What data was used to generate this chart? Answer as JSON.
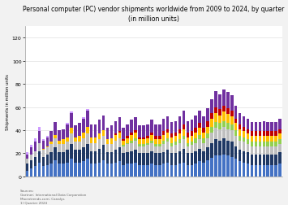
{
  "title": "Personal computer (PC) vendor shipments worldwide from 2009 to 2024, by quarter",
  "subtitle": "(in million units)",
  "ylabel": "Shipments in million units",
  "source_text": "Sources:\nGartner; International Data Corporation\nMacrotrends.com; Canalys\n1) Quarter 2024",
  "ylim": [
    0,
    130
  ],
  "yticks": [
    0,
    20,
    40,
    60,
    80,
    100,
    120
  ],
  "ytick_labels": [
    "0",
    "20",
    "40",
    "60",
    "80",
    "100",
    "120"
  ],
  "bg_color": "#f2f2f2",
  "plot_bg": "#ffffff",
  "colors": {
    "blue": "#4472c4",
    "navy": "#1f3864",
    "gray": "#bfbfbf",
    "green": "#92d050",
    "yellow": "#ffc000",
    "red": "#c00000",
    "purple": "#7030a0",
    "pink": "#cc99ff"
  },
  "series_order": [
    "blue",
    "navy",
    "gray",
    "green",
    "yellow",
    "red",
    "purple",
    "pink"
  ],
  "series": {
    "blue": [
      5,
      7,
      9,
      12,
      9,
      10,
      11,
      14,
      11,
      11,
      12,
      15,
      12,
      12,
      13,
      15,
      11,
      11,
      12,
      14,
      11,
      11,
      12,
      13,
      10,
      11,
      11,
      12,
      10,
      10,
      10,
      11,
      10,
      10,
      11,
      12,
      10,
      10,
      11,
      12,
      10,
      10,
      11,
      13,
      12,
      14,
      16,
      18,
      18,
      19,
      18,
      17,
      15,
      13,
      12,
      11,
      10,
      10,
      10,
      10,
      10,
      10,
      10,
      11
    ],
    "navy": [
      6,
      7,
      8,
      10,
      8,
      9,
      10,
      11,
      10,
      10,
      11,
      13,
      11,
      11,
      12,
      13,
      11,
      11,
      12,
      13,
      10,
      10,
      11,
      12,
      10,
      10,
      11,
      11,
      10,
      10,
      10,
      11,
      10,
      10,
      10,
      11,
      10,
      10,
      11,
      12,
      10,
      10,
      11,
      11,
      10,
      11,
      13,
      14,
      13,
      14,
      13,
      13,
      11,
      10,
      10,
      10,
      9,
      9,
      9,
      9,
      9,
      9,
      9,
      10
    ],
    "gray": [
      4,
      5,
      5,
      7,
      6,
      6,
      7,
      8,
      7,
      7,
      7,
      9,
      7,
      7,
      8,
      9,
      7,
      7,
      8,
      8,
      7,
      7,
      8,
      8,
      6,
      7,
      7,
      8,
      6,
      6,
      7,
      7,
      6,
      6,
      7,
      7,
      6,
      7,
      7,
      8,
      6,
      7,
      7,
      8,
      7,
      8,
      9,
      10,
      10,
      10,
      10,
      10,
      9,
      8,
      8,
      7,
      7,
      7,
      7,
      7,
      7,
      7,
      7,
      7
    ],
    "green": [
      0,
      0,
      0,
      0,
      0,
      0,
      0,
      0,
      0,
      0,
      0,
      0,
      0,
      0,
      0,
      0,
      0,
      0,
      0,
      0,
      0,
      0,
      0,
      0,
      1,
      1,
      2,
      2,
      2,
      2,
      2,
      2,
      2,
      2,
      3,
      3,
      3,
      3,
      3,
      3,
      3,
      3,
      4,
      4,
      4,
      4,
      5,
      5,
      5,
      5,
      5,
      5,
      5,
      4,
      4,
      4,
      4,
      4,
      4,
      4,
      4,
      4,
      4,
      4
    ],
    "yellow": [
      0,
      0,
      0,
      0,
      1,
      1,
      2,
      3,
      3,
      4,
      4,
      5,
      4,
      5,
      5,
      6,
      5,
      5,
      5,
      5,
      4,
      5,
      5,
      5,
      4,
      4,
      5,
      5,
      4,
      4,
      4,
      5,
      4,
      4,
      5,
      5,
      5,
      5,
      5,
      6,
      5,
      5,
      5,
      6,
      5,
      6,
      7,
      8,
      7,
      8,
      8,
      7,
      6,
      6,
      5,
      5,
      5,
      5,
      5,
      5,
      5,
      5,
      5,
      5
    ],
    "red": [
      0,
      0,
      0,
      0,
      0,
      0,
      0,
      0,
      0,
      0,
      0,
      0,
      0,
      0,
      0,
      0,
      0,
      0,
      0,
      0,
      0,
      0,
      1,
      1,
      1,
      2,
      2,
      2,
      2,
      2,
      2,
      2,
      3,
      3,
      3,
      3,
      3,
      3,
      4,
      4,
      4,
      4,
      4,
      4,
      4,
      5,
      5,
      5,
      5,
      5,
      5,
      5,
      4,
      4,
      4,
      4,
      4,
      4,
      4,
      4,
      4,
      4,
      4,
      4
    ],
    "purple": [
      4,
      6,
      8,
      10,
      7,
      8,
      9,
      11,
      9,
      9,
      11,
      13,
      10,
      11,
      12,
      14,
      11,
      11,
      12,
      13,
      10,
      11,
      11,
      12,
      10,
      10,
      11,
      11,
      10,
      10,
      10,
      11,
      10,
      10,
      11,
      11,
      10,
      10,
      11,
      12,
      10,
      10,
      11,
      11,
      10,
      11,
      12,
      14,
      13,
      14,
      14,
      13,
      11,
      10,
      9,
      9,
      8,
      8,
      8,
      9,
      8,
      8,
      8,
      9
    ],
    "pink": [
      2,
      2,
      3,
      4,
      1,
      1,
      0,
      0,
      0,
      0,
      1,
      1,
      0,
      0,
      1,
      1,
      0,
      0,
      0,
      0,
      0,
      0,
      0,
      0,
      0,
      0,
      0,
      0,
      0,
      0,
      0,
      0,
      0,
      0,
      0,
      0,
      0,
      0,
      0,
      0,
      0,
      0,
      0,
      0,
      0,
      0,
      0,
      0,
      0,
      0,
      0,
      0,
      0,
      0,
      0,
      0,
      0,
      0,
      0,
      0,
      0,
      0,
      0,
      0
    ]
  }
}
